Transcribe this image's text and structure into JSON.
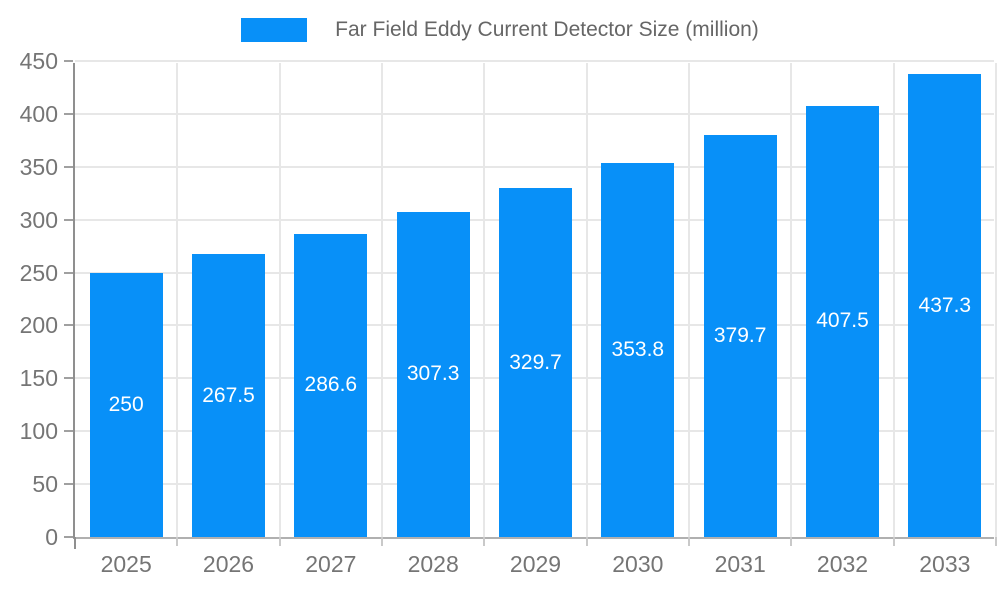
{
  "legend": {
    "label": "Far Field Eddy Current Detector Size (million)"
  },
  "colors": {
    "bar": "#0890f8",
    "grid": "#e7e7e7",
    "y_axis": "#8f8f8f",
    "x_axis": "#b0b0b0",
    "tick": "#c9c9c9",
    "axis_label_text": "#757575",
    "legend_text": "#666666",
    "bar_label_text": "#ffffff"
  },
  "chart_data": {
    "type": "bar",
    "title": "Far Field Eddy Current Detector Size (million)",
    "categories": [
      "2025",
      "2026",
      "2027",
      "2028",
      "2029",
      "2030",
      "2031",
      "2032",
      "2033"
    ],
    "values": [
      250,
      267.5,
      286.6,
      307.3,
      329.7,
      353.8,
      379.7,
      407.5,
      437.3
    ],
    "bar_labels": [
      "250",
      "267.5",
      "286.6",
      "307.3",
      "329.7",
      "353.8",
      "379.7",
      "407.5",
      "437.3"
    ],
    "xlabel": "",
    "ylabel": "",
    "ylim": [
      0,
      450
    ],
    "ytick_step": 50,
    "ytick_labels": [
      "0",
      "50",
      "100",
      "150",
      "200",
      "250",
      "300",
      "350",
      "400",
      "450"
    ],
    "grid": true,
    "legend_position": "top"
  }
}
